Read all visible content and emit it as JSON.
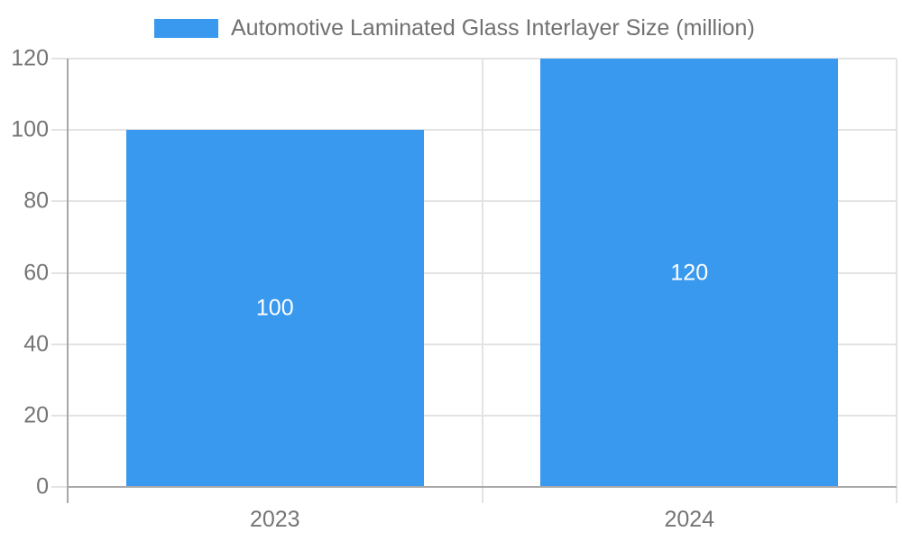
{
  "chart_data": {
    "type": "bar",
    "title": "Automotive Laminated Glass Interlayer Size (million)",
    "legend": {
      "label": "Automotive Laminated Glass Interlayer Size (million)",
      "position": "top-center"
    },
    "categories": [
      "2023",
      "2024"
    ],
    "series": [
      {
        "name": "Automotive Laminated Glass Interlayer Size (million)",
        "values": [
          100,
          120
        ]
      }
    ],
    "bar_labels": [
      "100",
      "120"
    ],
    "y_ticks": [
      0,
      20,
      40,
      60,
      80,
      100,
      120
    ],
    "ylim": [
      0,
      120
    ],
    "xlabel": "",
    "ylabel": "",
    "grid": true,
    "colors": {
      "bar": "#3999ee",
      "bar_label_text": "#ffffff",
      "gridline": "#e3e3e3",
      "axis_line": "#a8a8a8",
      "tick_text": "#757575",
      "title_text": "#717171",
      "background": "#ffffff"
    }
  }
}
